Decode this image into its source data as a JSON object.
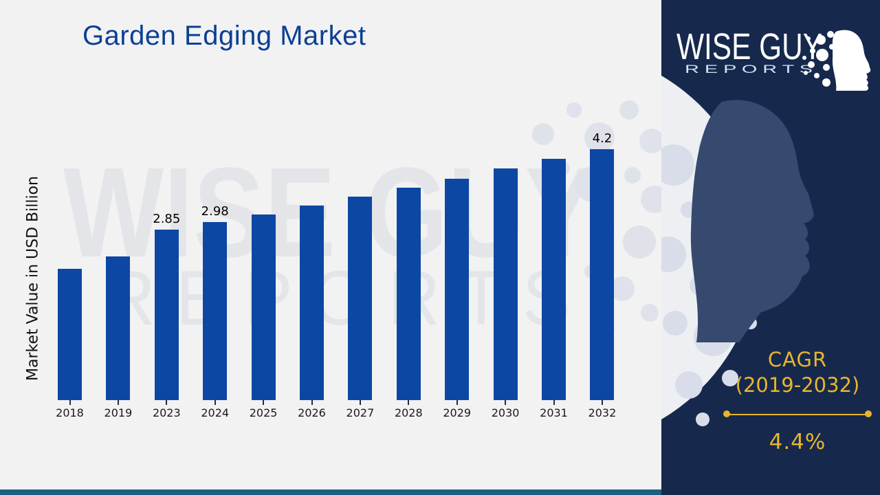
{
  "title": "Garden Edging Market",
  "y_axis_label": "Market Value in USD Billion",
  "watermark": {
    "line1": "WISE GUY",
    "line2": "R E P O R T S"
  },
  "logo": {
    "line1": "WISE GUY",
    "line2": "R E P O R T S"
  },
  "panel": {
    "cagr_title": "CAGR",
    "cagr_range": "(2019-2032)",
    "cagr_value": "4.4%"
  },
  "colors": {
    "bar": "#0d47a4",
    "title": "#0b3f94",
    "panel_navy": "#16294d",
    "accent_gold": "#e8b52d",
    "footer_teal": "#1c5f80",
    "watermark_gray": "#e3e5e9",
    "circle_light": "#edeff3"
  },
  "chart_data": {
    "type": "bar",
    "title": "Garden Edging Market",
    "ylabel": "Market Value in USD Billion",
    "xlabel": "",
    "categories": [
      "2018",
      "2019",
      "2023",
      "2024",
      "2025",
      "2026",
      "2027",
      "2028",
      "2029",
      "2030",
      "2031",
      "2032"
    ],
    "values": [
      2.2,
      2.4,
      2.85,
      2.98,
      3.1,
      3.25,
      3.4,
      3.55,
      3.7,
      3.87,
      4.04,
      4.2
    ],
    "bar_labels": [
      "",
      "",
      "2.85",
      "2.98",
      "",
      "",
      "",
      "",
      "",
      "",
      "",
      "4.2"
    ],
    "ylim": [
      0,
      4.6
    ],
    "grid": false,
    "legend": "none"
  }
}
